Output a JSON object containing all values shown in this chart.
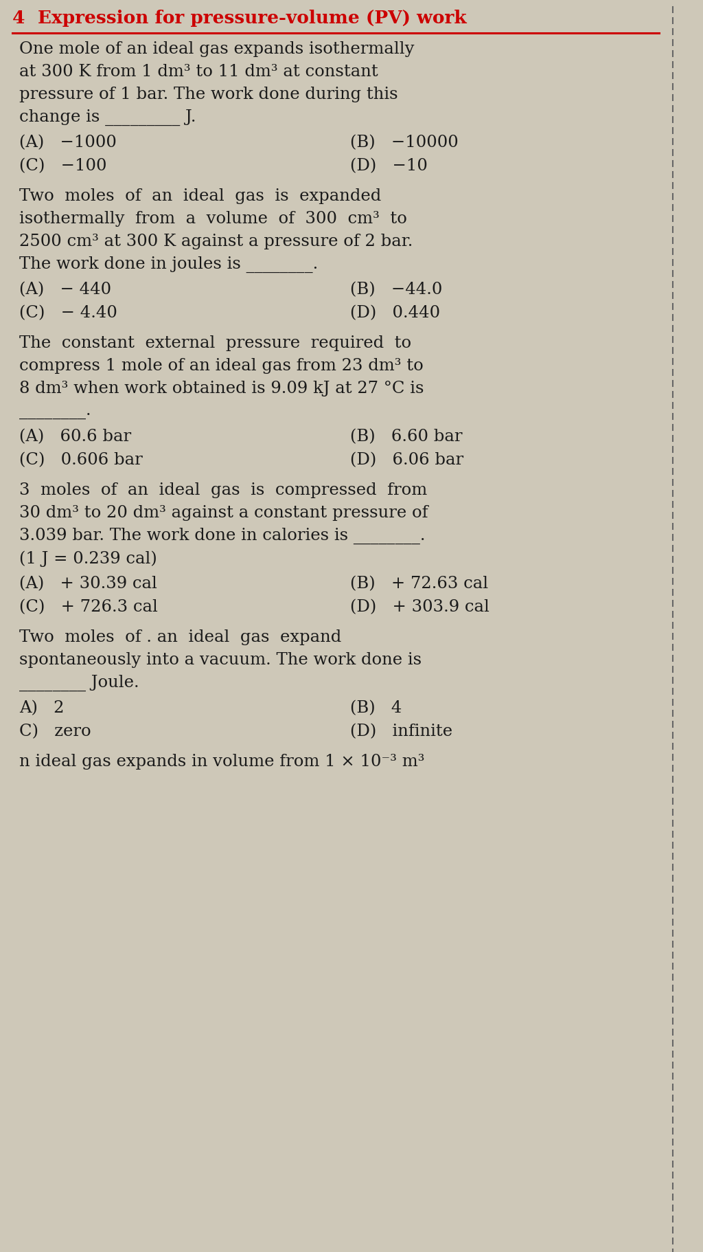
{
  "title_number": "4",
  "title_text": "Expression for pressure-volume (PV) work",
  "title_color": "#cc0000",
  "title_underline_color": "#cc0000",
  "bg_color": "#cec8b8",
  "text_color": "#1a1a1a",
  "right_border_color": "#666666",
  "figw": 10.24,
  "figh": 18.22,
  "dpi": 100,
  "q1_body": [
    "One mole of an ideal gas expands isothermally",
    "at 300 K from 1 dm³ to 11 dm³ at constant",
    "pressure of 1 bar. The work done during this",
    "change is _________ J."
  ],
  "q1_opts": [
    [
      "(A)   −1000",
      "(B)   −10000"
    ],
    [
      "(C)   −100",
      "(D)   −10"
    ]
  ],
  "q2_body": [
    "Two  moles  of  an  ideal  gas  is  expanded",
    "isothermally  from  a  volume  of  300  cm³  to",
    "2500 cm³ at 300 K against a pressure of 2 bar.",
    "The work done in joules is ________."
  ],
  "q2_opts": [
    [
      "(A)   − 440",
      "(B)   −44.0"
    ],
    [
      "(C)   − 4.40",
      "(D)   0.440"
    ]
  ],
  "q3_body": [
    "The  constant  external  pressure  required  to",
    "compress 1 mole of an ideal gas from 23 dm³ to",
    "8 dm³ when work obtained is 9.09 kJ at 27 °C is",
    "________."
  ],
  "q3_opts": [
    [
      "(A)   60.6 bar",
      "(B)   6.60 bar"
    ],
    [
      "(C)   0.606 bar",
      "(D)   6.06 bar"
    ]
  ],
  "q4_body": [
    "3  moles  of  an  ideal  gas  is  compressed  from",
    "30 dm³ to 20 dm³ against a constant pressure of",
    "3.039 bar. The work done in calories is ________.",
    "(1 J = 0.239 cal)"
  ],
  "q4_opts": [
    [
      "(A)   + 30.39 cal",
      "(B)   + 72.63 cal"
    ],
    [
      "(C)   + 726.3 cal",
      "(D)   + 303.9 cal"
    ]
  ],
  "q5_body": [
    "Two  moles  of . an  ideal  gas  expand",
    "spontaneously into a vacuum. The work done is",
    "________ Joule."
  ],
  "q5_opts": [
    [
      "A)   2",
      "(B)   4"
    ],
    [
      "C)   zero",
      "(D)   infinite"
    ]
  ],
  "q6_body": [
    "n ideal gas expands in volume from 1 × 10⁻³ m³"
  ],
  "q6_opts": []
}
